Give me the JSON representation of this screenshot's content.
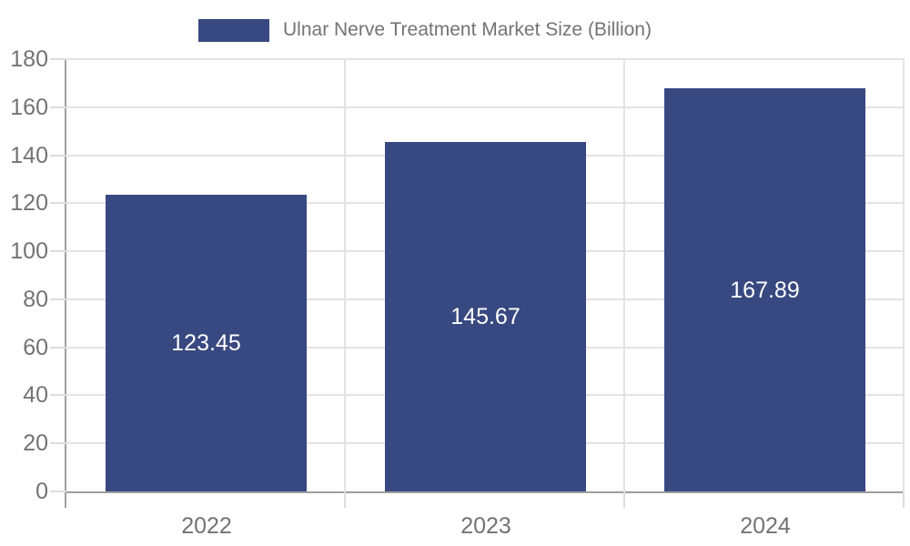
{
  "chart_data": {
    "type": "bar",
    "title": "Ulnar Nerve Treatment Market Size (Billion)",
    "categories": [
      "2022",
      "2023",
      "2024"
    ],
    "values": [
      123.45,
      145.67,
      167.89
    ],
    "value_labels": [
      "123.45",
      "145.67",
      "167.89"
    ],
    "xlabel": "",
    "ylabel": "",
    "ylim": [
      0,
      180
    ],
    "ytick_step": 20,
    "ytick_labels": [
      "0",
      "20",
      "40",
      "60",
      "80",
      "100",
      "120",
      "140",
      "160",
      "180"
    ],
    "grid": true,
    "legend_position": "top-center",
    "bar_width_fraction": 0.72
  },
  "colors": {
    "bar": "#384880",
    "axis": "#9E9E9E",
    "grid": "#E3E3E7",
    "tick": "#DDDDE0",
    "text": "#737373",
    "value_label": "#FFFFFF",
    "background": "#FFFFFF"
  }
}
